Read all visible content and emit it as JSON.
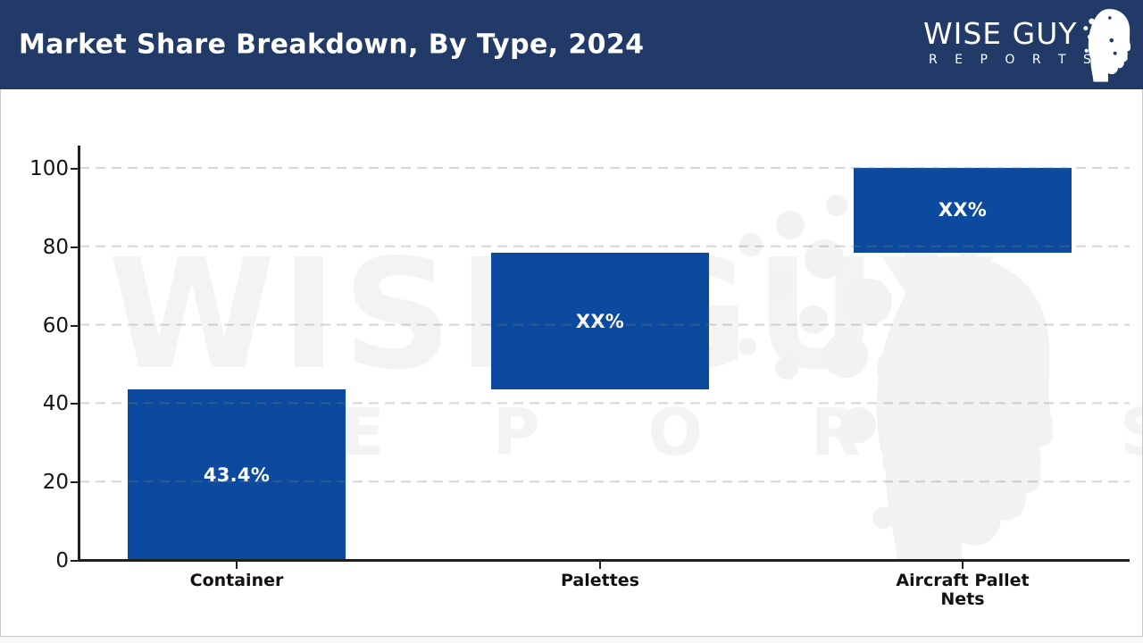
{
  "header": {
    "title": "Market Share Breakdown, By Type, 2024",
    "bg_color": "#223a67",
    "logo": {
      "line1": "WISE GUY",
      "line2": "R E P O R T S"
    }
  },
  "watermark": {
    "line1": "WISE GUY",
    "line2": "R E P O R T S"
  },
  "chart_data": {
    "type": "bar",
    "subtype": "waterfall-stacked-percentage",
    "title": "Market Share Breakdown, By Type, 2024",
    "categories": [
      "Container",
      "Palettes",
      "Aircraft Pallet Nets"
    ],
    "series": [
      {
        "name": "Market Share %",
        "values": [
          43.4,
          35.0,
          21.6
        ]
      }
    ],
    "bar_segments": [
      {
        "category": "Container",
        "start": 0,
        "end": 43.4,
        "label": "43.4%"
      },
      {
        "category": "Palettes",
        "start": 43.4,
        "end": 78.4,
        "label": "XX%"
      },
      {
        "category": "Aircraft Pallet Nets",
        "start": 78.4,
        "end": 100,
        "label": "XX%"
      }
    ],
    "xlabel": "",
    "ylabel": "",
    "ylim": [
      0,
      100
    ],
    "yticks": [
      0,
      20,
      40,
      60,
      80,
      100
    ],
    "grid": "horizontal-dashed",
    "legend": "none",
    "bar_color": "#0b4a9e",
    "bar_label_color": "#ffffff",
    "axis_color": "#1f1f1f",
    "grid_color": "#d9d9d9"
  }
}
